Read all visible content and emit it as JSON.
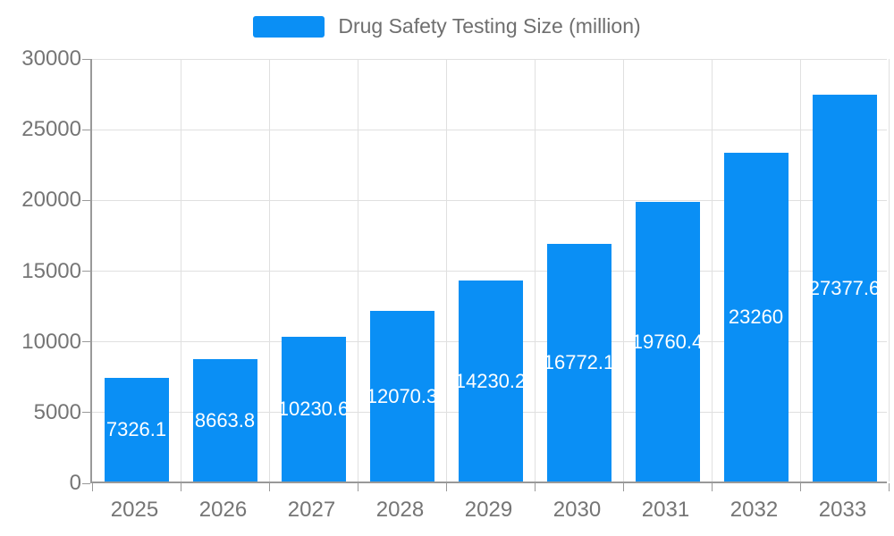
{
  "legend": {
    "label": "Drug Safety Testing Size (million)"
  },
  "colors": {
    "bar": "#0a8ff5",
    "axis_line": "#999999",
    "gridline": "#e0e0e0",
    "axis_text": "#757575",
    "legend_text": "#6f6f6f",
    "bar_label_text": "#ffffff",
    "background": "#ffffff"
  },
  "chart_data": {
    "type": "bar",
    "title": "Drug Safety Testing Size (million)",
    "categories": [
      "2025",
      "2026",
      "2027",
      "2028",
      "2029",
      "2030",
      "2031",
      "2032",
      "2033"
    ],
    "values": [
      7326.1,
      8663.8,
      10230.6,
      12070.3,
      14230.2,
      16772.1,
      19760.4,
      23260,
      27377.6
    ],
    "bar_labels": [
      "7326.1",
      "8663.8",
      "10230.6",
      "12070.3",
      "14230.2",
      "16772.1",
      "19760.4",
      "23260",
      "27377.6"
    ],
    "xlabel": "",
    "ylabel": "",
    "ylim": [
      0,
      30000
    ],
    "yticks": [
      0,
      5000,
      10000,
      15000,
      20000,
      25000,
      30000
    ],
    "grid": "horizontal-and-vertical",
    "legend_position": "top-center",
    "bar_label_position": "inside-center"
  }
}
